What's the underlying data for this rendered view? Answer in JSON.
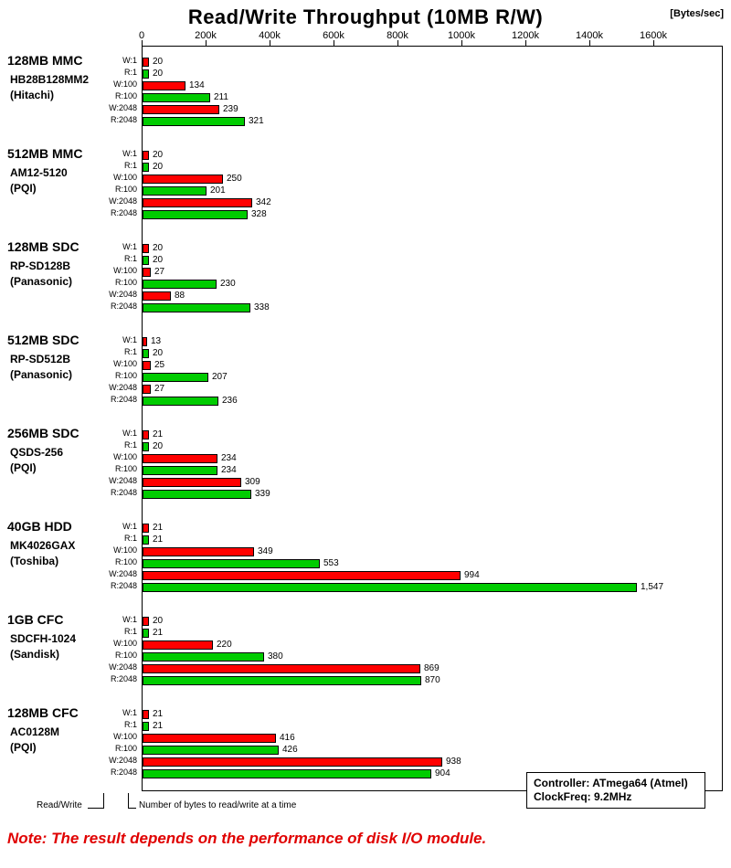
{
  "title": "Read/Write Throughput (10MB R/W)",
  "unit_label": "[Bytes/sec]",
  "footnote": "Note: The result depends on the performance of disk I/O module.",
  "legend": {
    "read_write_label": "Read/Write",
    "bytes_label": "Number of bytes to read/write at a time"
  },
  "info_box": {
    "line1": "Controller: ATmega64 (Atmel)",
    "line2": "ClockFreq: 9.2MHz"
  },
  "colors": {
    "write_bar": "#ff0000",
    "read_bar": "#00cc00",
    "note_text": "#e00000",
    "bar_border": "#000000"
  },
  "chart_data": {
    "type": "bar",
    "orientation": "horizontal",
    "title": "Read/Write Throughput (10MB R/W)",
    "xlabel": "[Bytes/sec]",
    "x_ticks": [
      "0",
      "200k",
      "400k",
      "600k",
      "800k",
      "1000k",
      "1200k",
      "1400k",
      "1600k"
    ],
    "x_tick_interval_bytes": 200000,
    "x_max_bytes": 1816000,
    "grid": false,
    "bar_row_labels": [
      "W:1",
      "R:1",
      "W:100",
      "R:100",
      "W:2048",
      "R:2048"
    ],
    "values_unit": "kBytes/sec",
    "series_colors": {
      "write": "#ff0000",
      "read": "#00cc00"
    },
    "groups": [
      {
        "name": "128MB MMC",
        "model": "HB28B128MM2",
        "maker": "(Hitachi)",
        "values": [
          20,
          20,
          134,
          211,
          239,
          321
        ]
      },
      {
        "name": "512MB MMC",
        "model": "AM12-5120",
        "maker": "(PQI)",
        "values": [
          20,
          20,
          250,
          201,
          342,
          328
        ]
      },
      {
        "name": "128MB SDC",
        "model": "RP-SD128B",
        "maker": "(Panasonic)",
        "values": [
          20,
          20,
          27,
          230,
          88,
          338
        ]
      },
      {
        "name": "512MB SDC",
        "model": "RP-SD512B",
        "maker": "(Panasonic)",
        "values": [
          13,
          20,
          25,
          207,
          27,
          236
        ]
      },
      {
        "name": "256MB SDC",
        "model": "QSDS-256",
        "maker": "(PQI)",
        "values": [
          21,
          20,
          234,
          234,
          309,
          339
        ]
      },
      {
        "name": "40GB HDD",
        "model": "MK4026GAX",
        "maker": "(Toshiba)",
        "values": [
          21,
          21,
          349,
          553,
          994,
          1547
        ]
      },
      {
        "name": "1GB CFC",
        "model": "SDCFH-1024",
        "maker": "(Sandisk)",
        "values": [
          20,
          21,
          220,
          380,
          869,
          870
        ]
      },
      {
        "name": "128MB CFC",
        "model": "AC0128M",
        "maker": "(PQI)",
        "values": [
          21,
          21,
          416,
          426,
          938,
          904
        ]
      }
    ]
  }
}
